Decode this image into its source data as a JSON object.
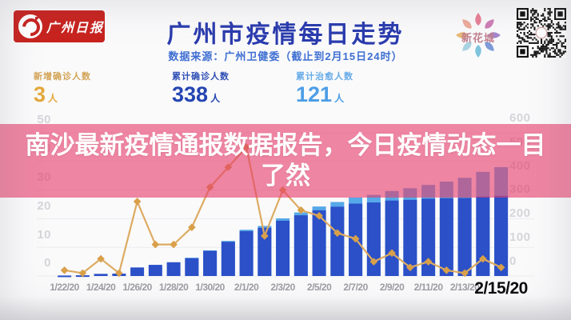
{
  "header": {
    "publisher": {
      "logo_text": "广州日报",
      "bg_color": "#c8231f"
    },
    "title": "广州市疫情每日走势",
    "subtitle": "数据来源：广州卫健委（截止到2月15日24时）",
    "brand": {
      "name": "新花城",
      "petal_colors": [
        "#e88096",
        "#cf7fb6",
        "#a487cd",
        "#7e9bd8",
        "#7fc3dc",
        "#a9d2e2",
        "#e9b977",
        "#edaa9b"
      ]
    },
    "qr": {
      "name": "qr-code"
    }
  },
  "stats": [
    {
      "label": "新增确诊人数",
      "value": "3",
      "unit": "人",
      "label_color": "#d2a354",
      "value_color": "#e4a93c"
    },
    {
      "label": "累计确诊人数",
      "value": "338",
      "unit": "人",
      "label_color": "#2e4eb4",
      "value_color": "#2545b2"
    },
    {
      "label": "累计治愈人数",
      "value": "121",
      "unit": "人",
      "label_color": "#66abe8",
      "value_color": "#4d9ee6"
    }
  ],
  "overlay": {
    "full_text": "南沙最新疫情通报数据报告，今日疫情动态一目了然",
    "line1": "南沙最新疫情通报数据报告，今日疫情动态一目",
    "line2": "了然",
    "bg_color": "rgba(231,62,106,0.62)",
    "text_color": "#ffffff"
  },
  "chart_data": {
    "type": "bar",
    "title": "广州市疫情每日走势",
    "categories": [
      "1/22/20",
      "1/23/20",
      "1/24/20",
      "1/25/20",
      "1/26/20",
      "1/27/20",
      "1/28/20",
      "1/29/20",
      "1/30/20",
      "1/31/20",
      "2/1/20",
      "2/2/20",
      "2/3/20",
      "2/4/20",
      "2/5/20",
      "2/6/20",
      "2/7/20",
      "2/8/20",
      "2/9/20",
      "2/10/20",
      "2/11/20",
      "2/12/20",
      "2/13/20",
      "2/14/20",
      "2/15/20"
    ],
    "x_tick_labels_shown": [
      "1/22/20",
      "1/24/20",
      "1/26/20",
      "1/28/20",
      "1/30/20",
      "2/1/20",
      "2/3/20",
      "2/5/20",
      "2/7/20",
      "2/9/20",
      "2/11/20",
      "2/13/20"
    ],
    "highlighted_x_label": "2/15/20",
    "left_axis": {
      "ticks_top_to_bottom": [
        50,
        40,
        30,
        20,
        10,
        0
      ],
      "range": [
        0,
        50
      ]
    },
    "right_axis": {
      "ticks_top_to_bottom": [
        600,
        500,
        400,
        300,
        200,
        100,
        0
      ],
      "range": [
        0,
        600
      ]
    },
    "series": [
      {
        "name": "累计确诊人数",
        "type": "bar",
        "axis": "right",
        "color": "#2b50c8",
        "values": [
          2,
          3,
          9,
          10,
          36,
          47,
          58,
          75,
          106,
          144,
          189,
          203,
          233,
          256,
          277,
          292,
          305,
          310,
          318,
          321,
          326,
          328,
          329,
          335,
          338
        ]
      },
      {
        "name": "累计治愈人数",
        "type": "bar_stacked_cap",
        "axis": "right",
        "color": "#56a8e8",
        "values": [
          0,
          0,
          0,
          0,
          0,
          1,
          1,
          2,
          2,
          4,
          6,
          8,
          10,
          12,
          16,
          20,
          26,
          32,
          40,
          49,
          58,
          70,
          85,
          104,
          121
        ]
      },
      {
        "name": "新增确诊人数",
        "type": "line",
        "axis": "left",
        "color": "#ddab62",
        "marker": "diamond",
        "values": [
          2,
          1,
          6,
          1,
          26,
          11,
          11,
          17,
          31,
          38,
          45,
          14,
          30,
          23,
          21,
          15,
          13,
          5,
          8,
          3,
          5,
          2,
          1,
          6,
          3
        ]
      }
    ],
    "grid": true,
    "legend_position": "none"
  }
}
